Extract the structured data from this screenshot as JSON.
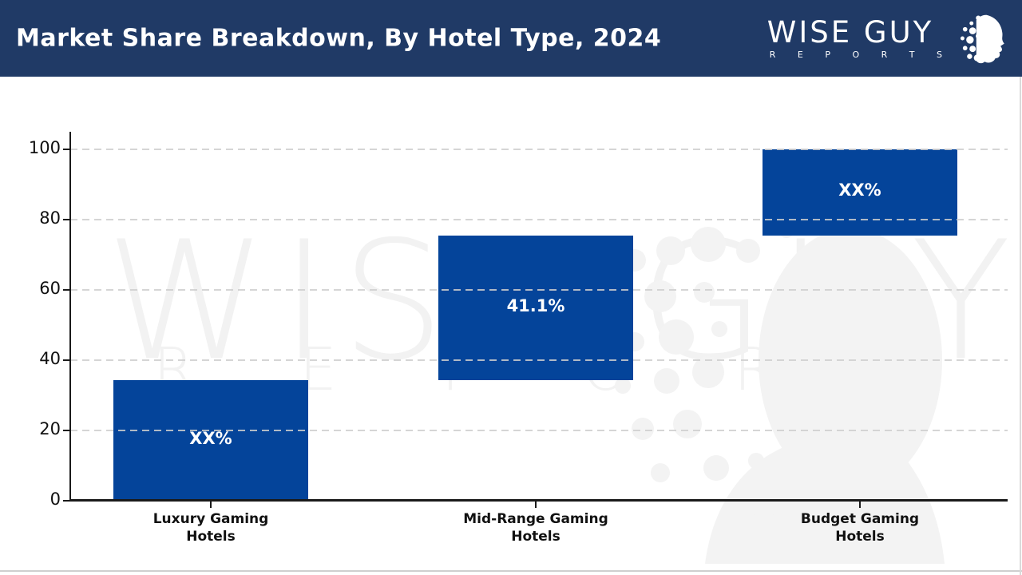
{
  "header": {
    "title": "Market Share Breakdown, By Hotel Type, 2024",
    "logo": {
      "line1": "WISE GUY",
      "line2": "R E P O R T S"
    }
  },
  "watermark": {
    "line1": "WISE GUY",
    "line2": "R E P O R T S"
  },
  "chart_data": {
    "type": "bar",
    "subtype": "stacked-waterfall",
    "title": "Market Share Breakdown, By Hotel Type, 2024",
    "categories": [
      "Luxury Gaming\nHotels",
      "Mid-Range Gaming\nHotels",
      "Budget Gaming\nHotels"
    ],
    "segments": [
      {
        "category": "Luxury Gaming Hotels",
        "start": 0,
        "end": 34.3,
        "label": "XX%"
      },
      {
        "category": "Mid-Range Gaming Hotels",
        "start": 34.3,
        "end": 75.4,
        "label": "41.1%"
      },
      {
        "category": "Budget Gaming Hotels",
        "start": 75.4,
        "end": 100,
        "label": "XX%"
      }
    ],
    "ylim": [
      0,
      100
    ],
    "yticks": [
      0,
      20,
      40,
      60,
      80,
      100
    ],
    "grid": {
      "axis": "y",
      "style": "dashed",
      "drawn_over_bars": true
    },
    "legend": "none",
    "bar_color": "#04449a",
    "bar_label_color": "#ffffff"
  },
  "colors": {
    "header_bg": "#203a66",
    "bar": "#04449a",
    "grid": "#cecece",
    "axis": "#1a1a1a",
    "watermark": "#f2f2f2",
    "page_bg": "#ffffff"
  }
}
